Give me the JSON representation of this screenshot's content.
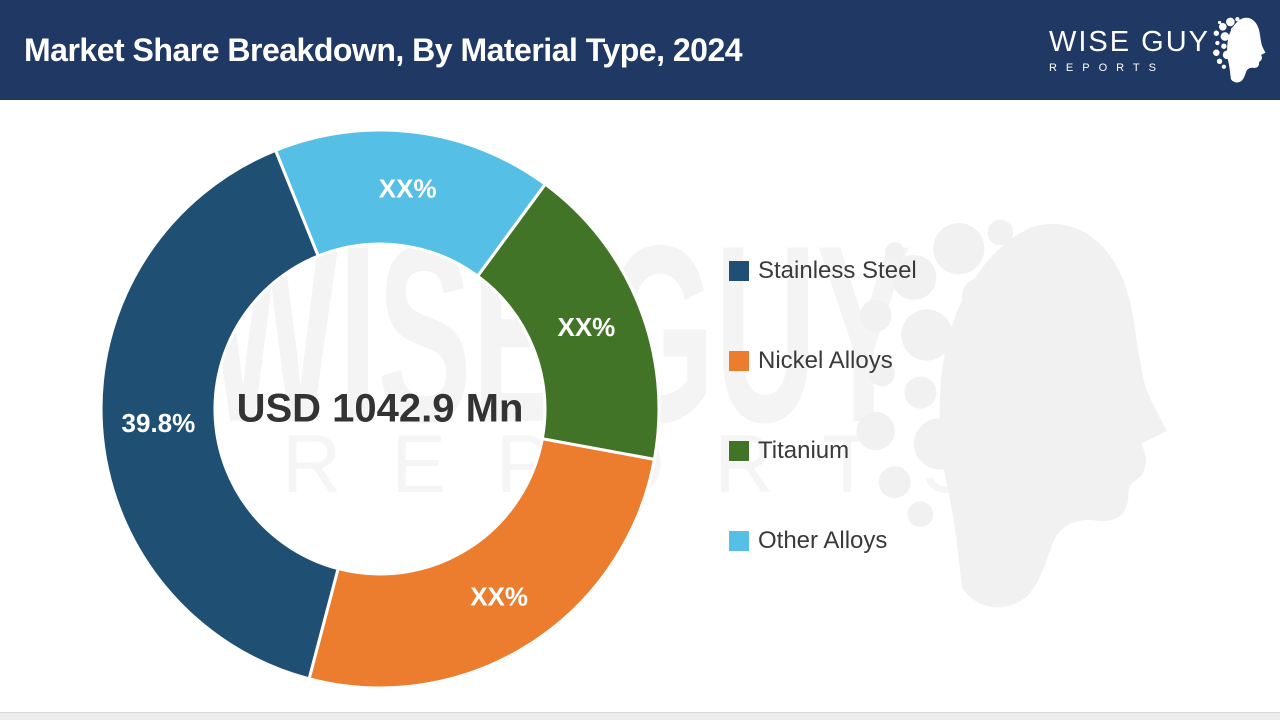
{
  "header": {
    "title": "Market Share Breakdown, By Material Type, 2024",
    "brand": {
      "name": "WISE GUY",
      "sub": "REPORTS"
    },
    "bg_color": "#203864"
  },
  "watermark": {
    "line1": "WISE GUY",
    "line2": "REPORTS"
  },
  "chart_data": {
    "type": "pie",
    "subtype": "donut",
    "title": "Market Share Breakdown, By Material Type, 2024",
    "center_label": "USD 1042.9 Mn",
    "legend_position": "right",
    "series": [
      {
        "name": "Stainless Steel",
        "value_pct": 39.8,
        "label": "39.8%",
        "color": "#204F74"
      },
      {
        "name": "Nickel Alloys",
        "value_pct": 26.2,
        "label": "XX%",
        "color": "#EC7D2F"
      },
      {
        "name": "Titanium",
        "value_pct": 17.8,
        "label": "XX%",
        "color": "#427427"
      },
      {
        "name": "Other Alloys",
        "value_pct": 16.2,
        "label": "XX%",
        "color": "#55BFE6"
      }
    ],
    "donut": {
      "start_angle_deg": 112,
      "clockwise_order": [
        3,
        2,
        1,
        0
      ]
    }
  }
}
